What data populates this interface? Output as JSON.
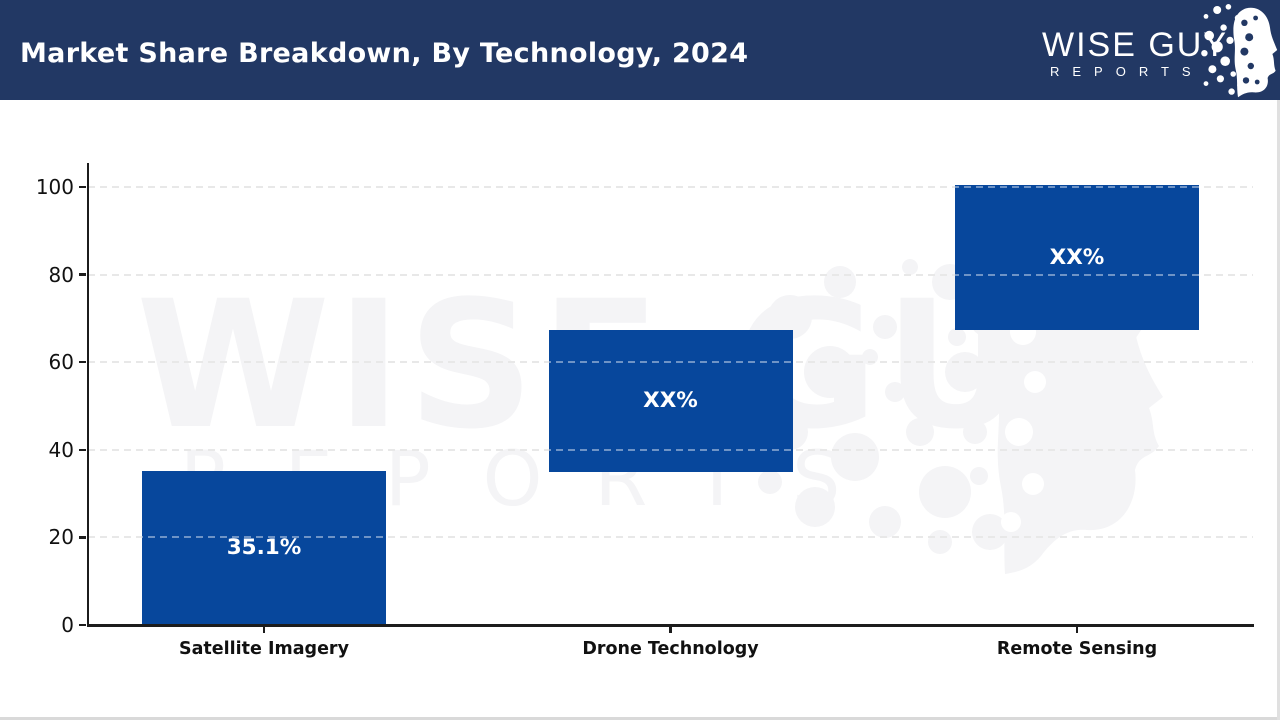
{
  "header": {
    "title": "Market Share Breakdown, By Technology, 2024",
    "logo": {
      "wordmark": "WISE GUY",
      "sub": "REPORTS",
      "icon": "face-profile-dots-icon"
    }
  },
  "watermark": {
    "wordmark": "WISE GUY",
    "sub": "REPORTS"
  },
  "colors": {
    "header_bg": "#223864",
    "header_text": "#ffffff",
    "bar": "#07479c",
    "bar_label": "#ffffff",
    "axis": "#1c1c1c",
    "grid": "#d8d8d8",
    "watermark": "#f4f4f6"
  },
  "chart_data": {
    "type": "bar",
    "variant": "waterfall",
    "title": "Market Share Breakdown, By Technology, 2024",
    "categories": [
      "Satellite Imagery",
      "Drone Technology",
      "Remote Sensing"
    ],
    "bars": [
      {
        "category": "Satellite Imagery",
        "start": 0,
        "end": 35.1,
        "label": "35.1%"
      },
      {
        "category": "Drone Technology",
        "start": 34.9,
        "end": 67.3,
        "label": "XX%"
      },
      {
        "category": "Remote Sensing",
        "start": 67.3,
        "end": 100.4,
        "label": "XX%"
      }
    ],
    "xlabel": "",
    "ylabel": "",
    "yticks": [
      0,
      20,
      40,
      60,
      80,
      100
    ],
    "ylim": [
      0,
      105.5
    ],
    "grid": "horizontal-dashed",
    "legend": "none"
  }
}
